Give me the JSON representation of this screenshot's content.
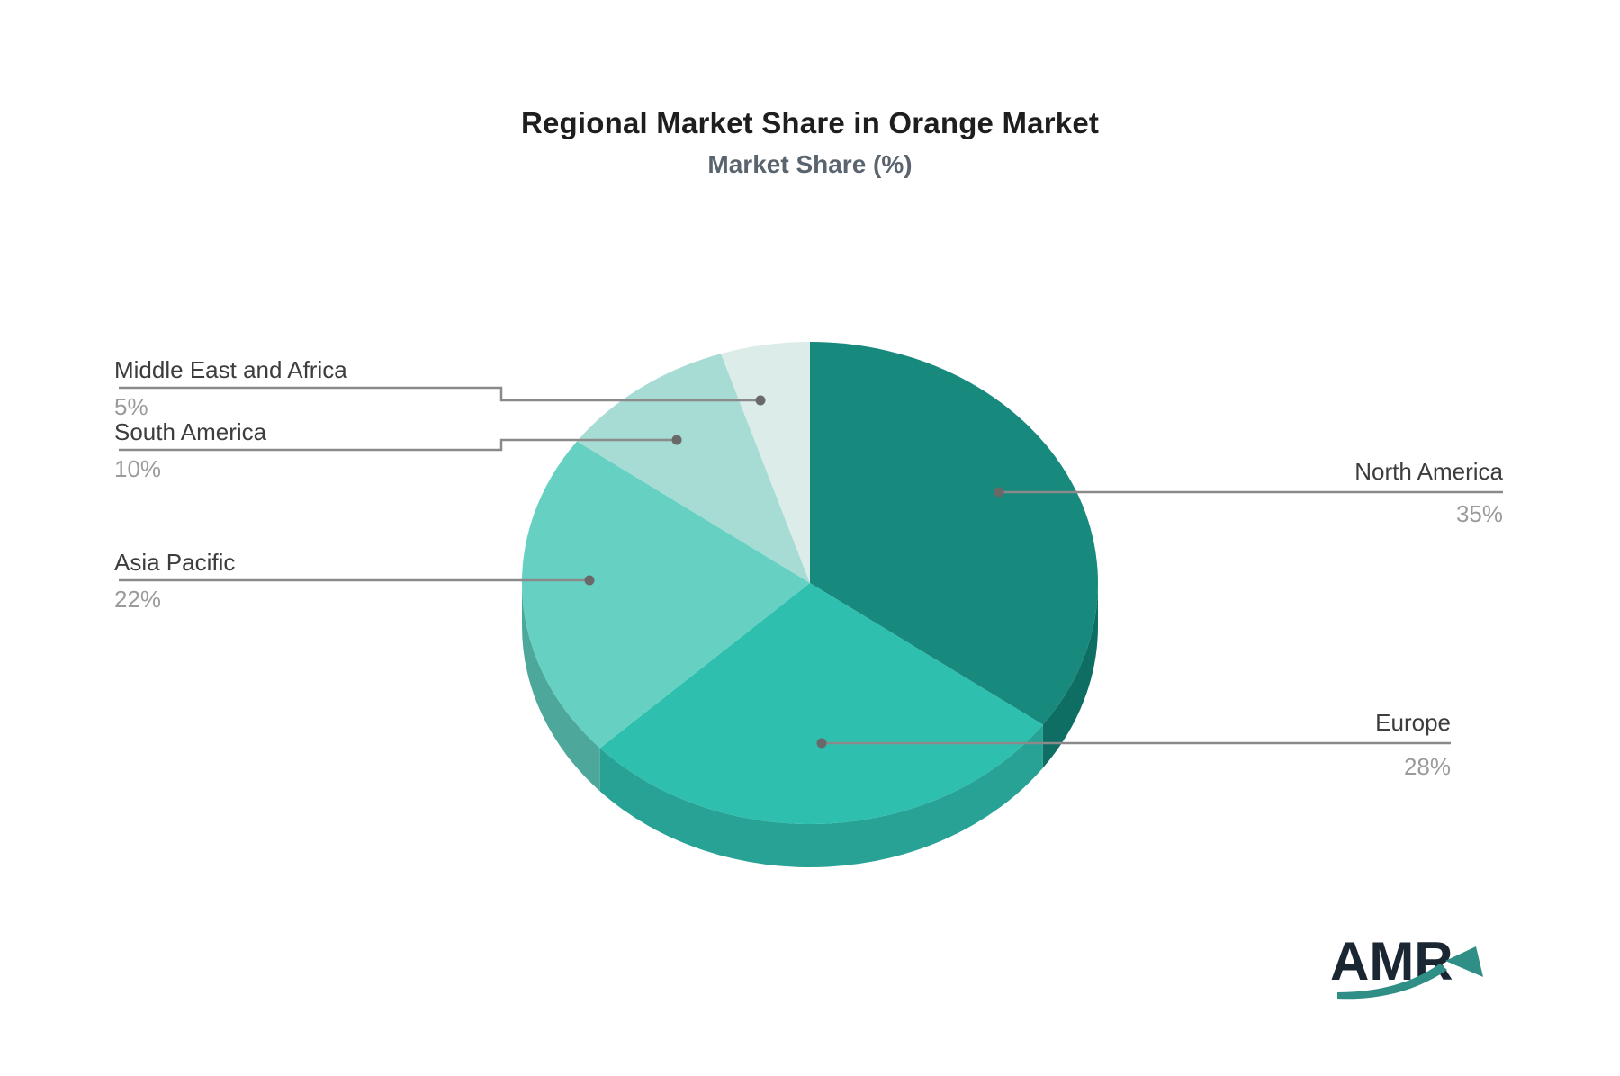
{
  "title": "Regional Market Share in Orange Market",
  "subtitle": "Market Share (%)",
  "chart_data": {
    "type": "pie",
    "style": "3d-pie",
    "title": "Regional Market Share in Orange Market",
    "subtitle": "Market Share (%)",
    "unit": "%",
    "start_angle_deg": 0,
    "direction": "clockwise",
    "slices": [
      {
        "label": "North America",
        "value": 35,
        "display": "35%",
        "color": "#17897d",
        "side_color": "#0f6e64",
        "label_side": "right"
      },
      {
        "label": "Europe",
        "value": 28,
        "display": "28%",
        "color": "#2ebfae",
        "side_color": "#27a295",
        "label_side": "right"
      },
      {
        "label": "Asia Pacific",
        "value": 22,
        "display": "22%",
        "color": "#66d1c3",
        "side_color": "#4da89b",
        "label_side": "left"
      },
      {
        "label": "South America",
        "value": 10,
        "display": "10%",
        "color": "#a6dcd4",
        "side_color": "#8cc6bd",
        "label_side": "left"
      },
      {
        "label": "Middle East and Africa",
        "value": 5,
        "display": "5%",
        "color": "#dcece9",
        "side_color": "#c3d9d4",
        "label_side": "left"
      }
    ],
    "leader_line_color": "#8a8a8a",
    "leader_dot_color": "#696969"
  },
  "logo": {
    "text": "AMR",
    "arrow_color": "#2f8e86"
  }
}
